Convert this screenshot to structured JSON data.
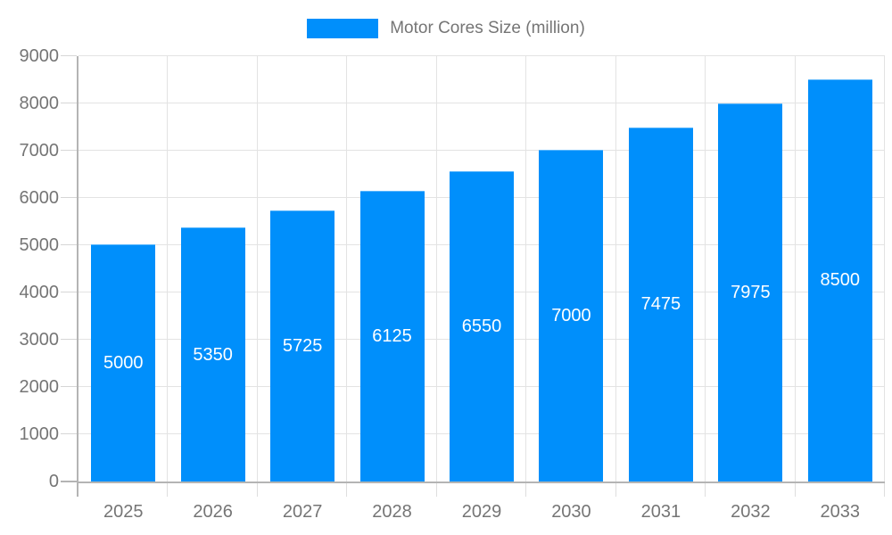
{
  "legend": {
    "label": "Motor Cores Size (million)",
    "swatch_color": "#008ffb"
  },
  "chart_data": {
    "type": "bar",
    "title": "",
    "categories": [
      "2025",
      "2026",
      "2027",
      "2028",
      "2029",
      "2030",
      "2031",
      "2032",
      "2033"
    ],
    "series": [
      {
        "name": "Motor Cores Size (million)",
        "values": [
          5000,
          5350,
          5725,
          6125,
          6550,
          7000,
          7475,
          7975,
          8500
        ]
      }
    ],
    "xlabel": "",
    "ylabel": "",
    "ylim": [
      0,
      9000
    ],
    "ytick_step": 1000,
    "yticks": [
      0,
      1000,
      2000,
      3000,
      4000,
      5000,
      6000,
      7000,
      8000,
      9000
    ],
    "grid": true,
    "legend_position": "top-center",
    "bar_color": "#008ffb",
    "value_label_color": "#ffffff",
    "axis_text_color": "#757575",
    "grid_color": "#e3e3e3",
    "axis_line_color": "#b4b4b4"
  }
}
